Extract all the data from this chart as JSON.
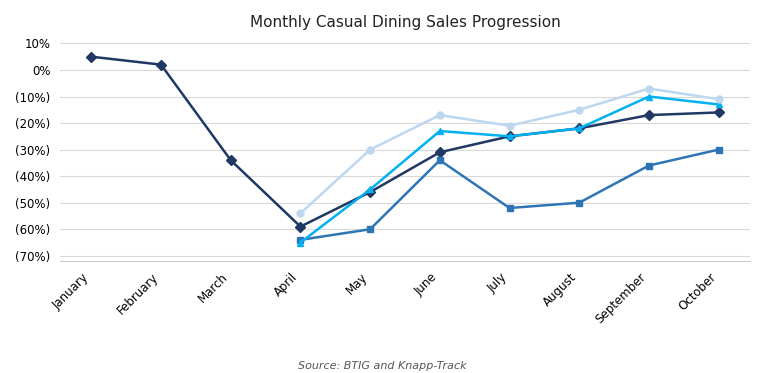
{
  "title": "Monthly Casual Dining Sales Progression",
  "source": "Source: BTIG and Knapp-Track",
  "months": [
    "January",
    "February",
    "March",
    "April",
    "May",
    "June",
    "July",
    "August",
    "September",
    "October"
  ],
  "series": {
    "Knapp-Track (National Average)": {
      "values": [
        0.05,
        0.02,
        -0.34,
        -0.59,
        -0.46,
        -0.31,
        -0.25,
        -0.22,
        -0.17,
        -0.16
      ],
      "color": "#1f3864",
      "marker": "D",
      "linewidth": 1.8,
      "markersize": 5
    },
    "California": {
      "values": [
        null,
        null,
        null,
        -0.64,
        -0.6,
        -0.34,
        -0.52,
        -0.5,
        -0.36,
        -0.3
      ],
      "color": "#2e75b6",
      "marker": "s",
      "linewidth": 1.8,
      "markersize": 5
    },
    "Florida": {
      "values": [
        null,
        null,
        null,
        -0.65,
        -0.45,
        -0.23,
        -0.25,
        -0.22,
        -0.1,
        -0.13
      ],
      "color": "#00b0f0",
      "marker": "^",
      "linewidth": 1.8,
      "markersize": 5
    },
    "Texas": {
      "values": [
        null,
        null,
        null,
        -0.54,
        -0.3,
        -0.17,
        -0.21,
        -0.15,
        -0.07,
        -0.11
      ],
      "color": "#bdd7ee",
      "marker": "o",
      "linewidth": 1.8,
      "markersize": 5
    }
  },
  "ylim": [
    -0.72,
    0.12
  ],
  "yticks": [
    0.1,
    0.0,
    -0.1,
    -0.2,
    -0.3,
    -0.4,
    -0.5,
    -0.6,
    -0.7
  ],
  "background_color": "#ffffff",
  "plot_area_color": "#ffffff",
  "grid_color": "#d9d9d9"
}
